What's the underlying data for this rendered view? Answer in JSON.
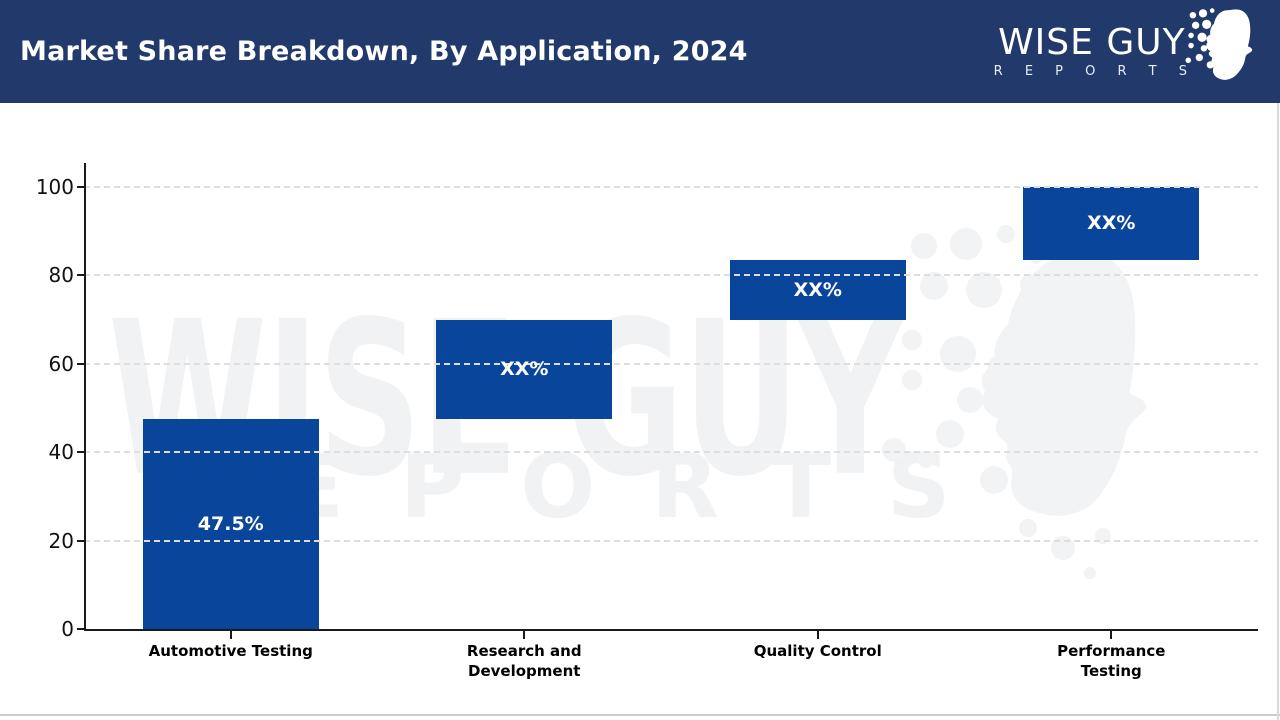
{
  "header": {
    "title": "Market Share Breakdown, By Application, 2024",
    "bg_color": "#213a6b",
    "logo": {
      "name": "WISE GUY",
      "sub": "R E P O R T S"
    }
  },
  "watermark": {
    "big": "WISE GUY",
    "sub": "REPORTS"
  },
  "chart_data": {
    "type": "bar",
    "subtype": "waterfall",
    "title": "Market Share Breakdown, By Application, 2024",
    "xlabel": "",
    "ylabel": "",
    "categories": [
      "Automotive Testing",
      "Research and\nDevelopment",
      "Quality Control",
      "Performance\nTesting"
    ],
    "segments": [
      {
        "category": "Automotive Testing",
        "start": 0,
        "end": 47.5,
        "label": "47.5%"
      },
      {
        "category": "Research and Development",
        "start": 47.5,
        "end": 70,
        "label": "XX%"
      },
      {
        "category": "Quality Control",
        "start": 70,
        "end": 83.5,
        "label": "XX%"
      },
      {
        "category": "Performance Testing",
        "start": 83.5,
        "end": 100,
        "label": "XX%"
      }
    ],
    "yticks": [
      0,
      20,
      40,
      60,
      80,
      100
    ],
    "ylim": [
      0,
      105
    ],
    "bar_color": "#0a459c",
    "grid": "horizontal dashed",
    "grid_color": "#dedede",
    "legend": null
  }
}
